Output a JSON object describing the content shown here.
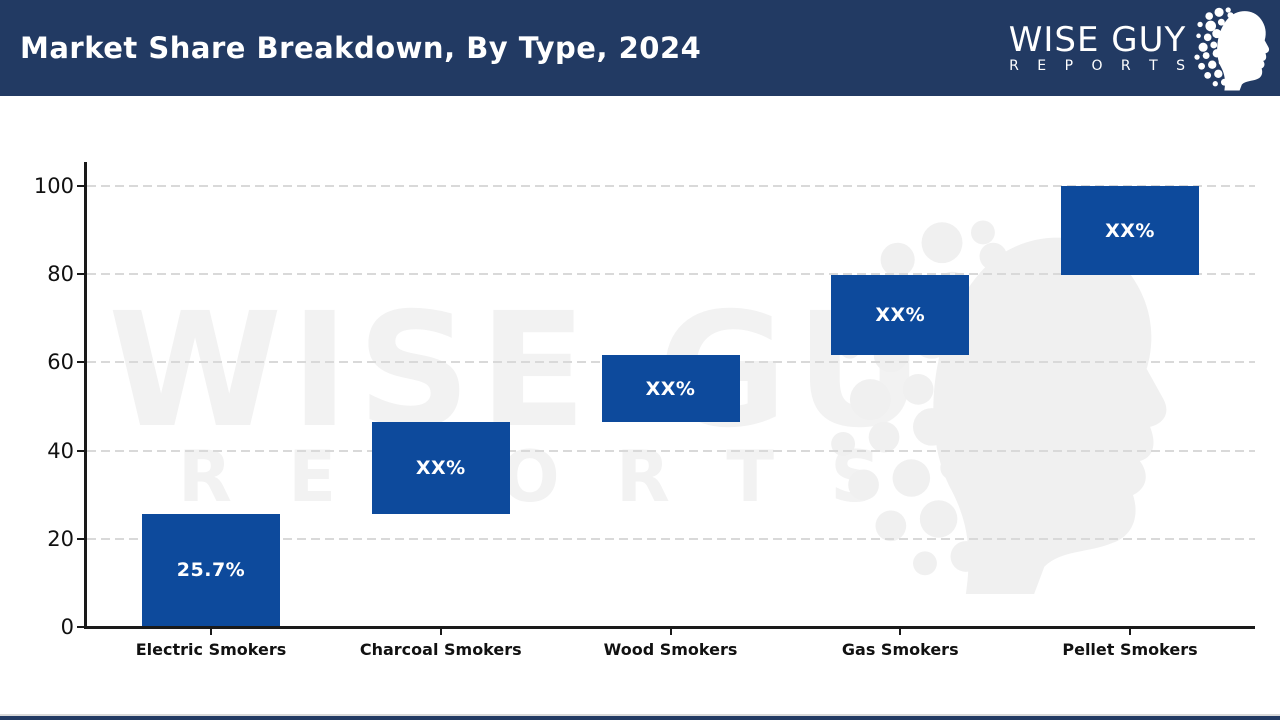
{
  "header": {
    "title": "Market Share Breakdown, By Type, 2024",
    "logo": {
      "line1": "WISE GUY",
      "line2": "R E P O R T S",
      "icon": "dotted-face-profile-icon"
    }
  },
  "watermark": {
    "line1": "WISE GUY",
    "line2": "R E P O R T S",
    "icon": "dotted-face-profile-icon"
  },
  "chart_data": {
    "type": "bar",
    "subtype": "waterfall",
    "title": "Market Share Breakdown, By Type, 2024",
    "categories": [
      "Electric Smokers",
      "Charcoal Smokers",
      "Wood Smokers",
      "Gas Smokers",
      "Pellet Smokers"
    ],
    "segments": [
      {
        "category": "Electric Smokers",
        "start": 0,
        "end": 25.7,
        "label": "25.7%"
      },
      {
        "category": "Charcoal Smokers",
        "start": 25.7,
        "end": 46.4,
        "label": "XX%"
      },
      {
        "category": "Wood Smokers",
        "start": 46.4,
        "end": 61.6,
        "label": "XX%"
      },
      {
        "category": "Gas Smokers",
        "start": 61.6,
        "end": 79.8,
        "label": "XX%"
      },
      {
        "category": "Pellet Smokers",
        "start": 79.8,
        "end": 100,
        "label": "XX%"
      }
    ],
    "yticks": [
      0,
      20,
      40,
      60,
      80,
      100
    ],
    "ylim": [
      0,
      105
    ],
    "xlabel": "",
    "ylabel": "",
    "grid": "horizontal dashed",
    "legend": "none",
    "bar_color": "#0d4a9c",
    "bar_label_color": "#ffffff"
  },
  "colors": {
    "header_bg": "#223a63",
    "footer_bg": "#223a63",
    "axis": "#1a1a1a",
    "gridline": "#d9d9d9",
    "watermark": "#f2f2f2",
    "background": "#ffffff"
  }
}
